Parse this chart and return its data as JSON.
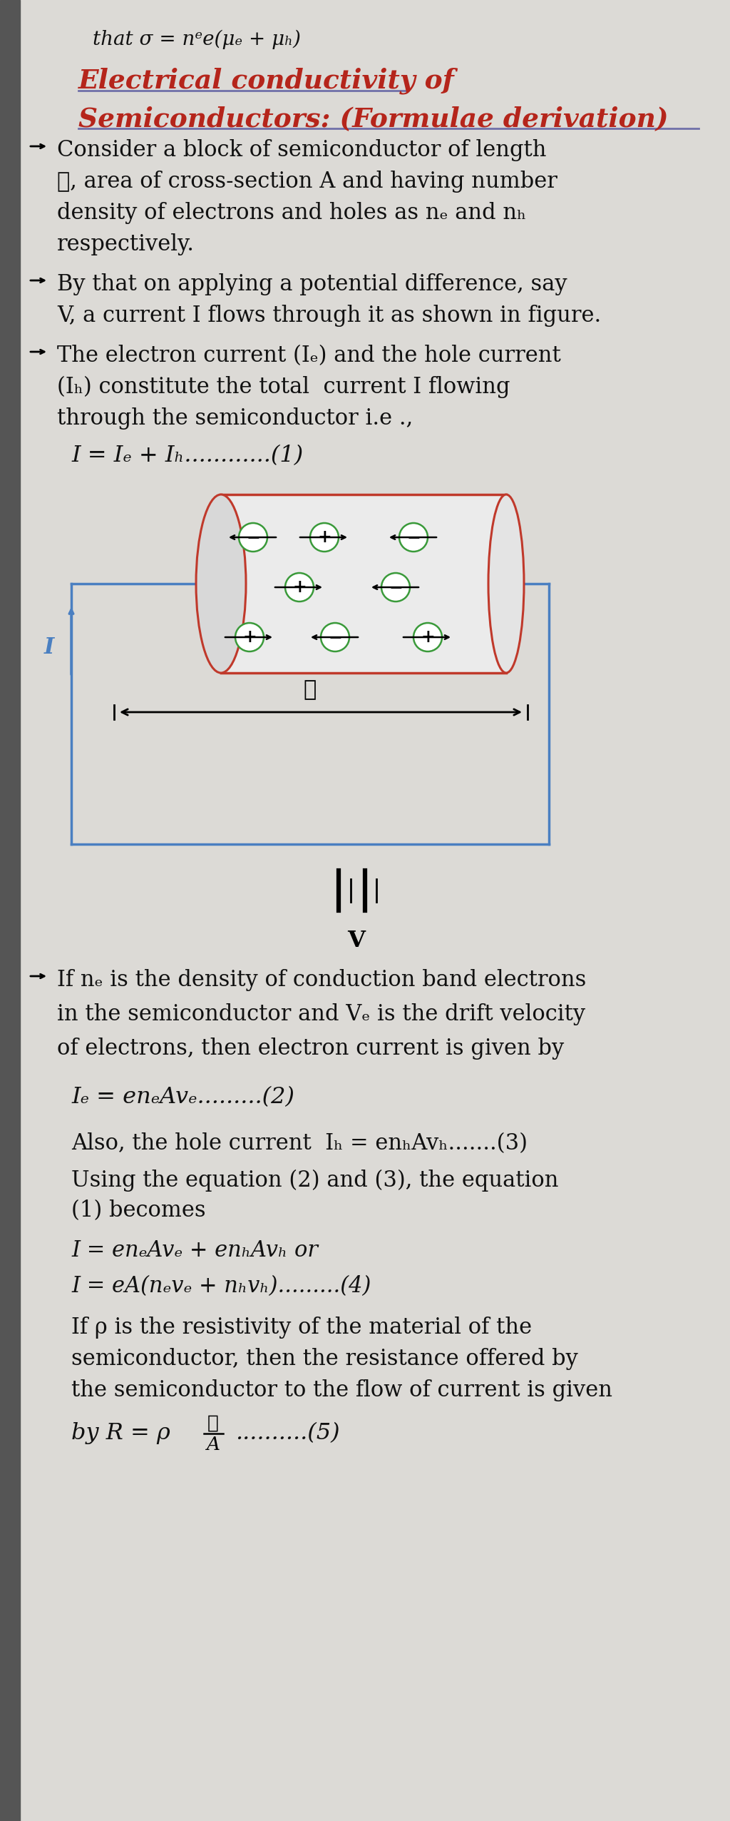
{
  "bg_color": "#dcdad6",
  "title_color": "#b5251b",
  "text_color": "#111111",
  "wire_color": "#4a7fc1",
  "header": "that σ = nᵉe(μₑ + μₕ)",
  "title1": "Electrical conductivity of",
  "title2": "Semiconductors: (Formulae derivation)",
  "b1": [
    "Consider a block of semiconductor of length",
    "ℓ, area of cross-section A and having number",
    "density of electrons and holes as nₑ and nₕ",
    "respectively."
  ],
  "b2": [
    "By that on applying a potential difference, say",
    "V, a current I flows through it as shown in figure."
  ],
  "b3": [
    "The electron current (Iₑ) and the hole current",
    "(Iₕ) constitute the total  current I flowing",
    "through the semiconductor i.e .,"
  ],
  "eq1": "I = Iₑ + Iₕ............(1)",
  "b4": [
    "If nₑ is the density of conduction band electrons",
    "in the semiconductor and Vₑ is the drift velocity",
    "of electrons, then electron current is given by"
  ],
  "eq2": "Iₑ = enₑAvₑ.........(2)",
  "also": "Also, the hole current  Iₕ = enₕAvₕ.......(3)",
  "using": [
    "Using the equation (2) and (3), the equation",
    "(1) becomes"
  ],
  "eq3": "I = enₑAvₑ + enₕAvₕ or",
  "eq4": "I = eA(nₑvₑ + nₕvₕ).........(4)",
  "rho": [
    "If ρ is the resistivity of the material of the",
    "semiconductor, then the resistance offered by",
    "the semiconductor to the flow of current is given"
  ],
  "eq5a": "by R = ρ ",
  "eq5b": "..........(5)"
}
